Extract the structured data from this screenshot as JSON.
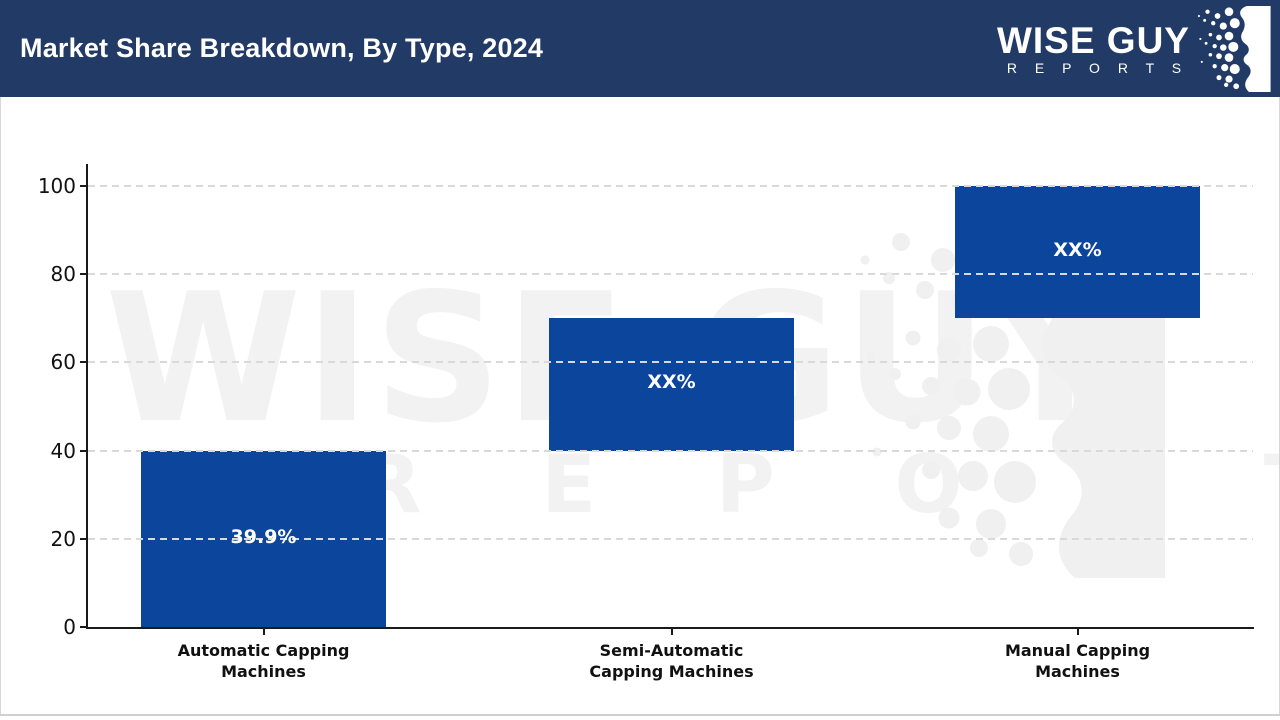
{
  "header": {
    "title": "Market Share Breakdown, By Type, 2024",
    "logo": {
      "wordmark": "WISE GUY",
      "subtext": "R E P O R T S"
    }
  },
  "watermark": {
    "wordmark": "WISE GUY",
    "subtext": "R E P O R T S"
  },
  "chart_data": {
    "type": "bar",
    "variant": "floating-waterfall-segments",
    "title": "Market Share Breakdown, By Type, 2024",
    "categories": [
      "Automatic Capping\nMachines",
      "Semi-Automatic\nCapping Machines",
      "Manual Capping\nMachines"
    ],
    "bars": [
      {
        "category": "Automatic Capping Machines",
        "start": 0,
        "end": 40,
        "label": "39.9%"
      },
      {
        "category": "Semi-Automatic Capping Machines",
        "start": 40,
        "end": 70,
        "label": "XX%"
      },
      {
        "category": "Manual Capping Machines",
        "start": 70,
        "end": 100,
        "label": "XX%"
      }
    ],
    "ylim": [
      0,
      100
    ],
    "yticks": [
      0,
      20,
      40,
      60,
      80,
      100
    ],
    "xlabel": "",
    "ylabel": "",
    "grid": "horizontal-dashed-over-bars",
    "legend": "none",
    "bar_color": "#0c459c",
    "value_label_color": "#ffffff"
  },
  "colors": {
    "header_bg": "#223a66",
    "axis": "#1a1a1a",
    "gridline": "#d9d9d9",
    "watermark": "#f2f2f2",
    "bottom_rule": "#cfcfcf"
  }
}
